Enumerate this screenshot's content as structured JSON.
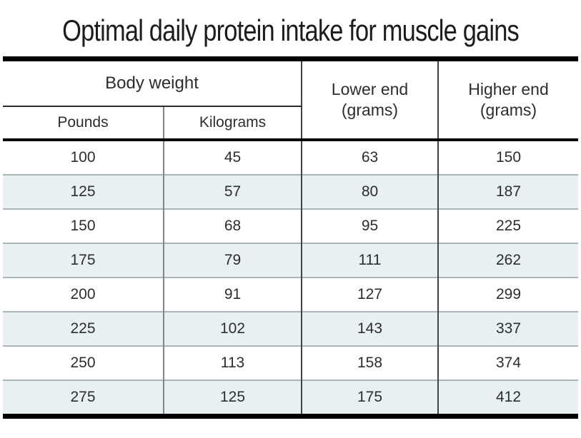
{
  "title": "Optimal daily protein intake for muscle gains",
  "table": {
    "header": {
      "body_weight": "Body weight",
      "pounds": "Pounds",
      "kilograms": "Kilograms",
      "lower_end": {
        "line1": "Lower end",
        "line2": "(grams)"
      },
      "higher_end": {
        "line1": "Higher end",
        "line2": "(grams)"
      }
    }
  },
  "chart_data": {
    "type": "table",
    "title": "Optimal daily protein intake for muscle gains",
    "column_groups": [
      {
        "label": "Body weight",
        "span": 2
      }
    ],
    "columns": [
      "Pounds",
      "Kilograms",
      "Lower end (grams)",
      "Higher end (grams)"
    ],
    "rows": [
      [
        100,
        45,
        63,
        150
      ],
      [
        125,
        57,
        80,
        187
      ],
      [
        150,
        68,
        95,
        225
      ],
      [
        175,
        79,
        111,
        262
      ],
      [
        200,
        91,
        127,
        299
      ],
      [
        225,
        102,
        143,
        337
      ],
      [
        250,
        113,
        158,
        374
      ],
      [
        275,
        125,
        175,
        412
      ]
    ],
    "row_shading": "alternate even rows shaded"
  },
  "colors": {
    "title_text": "#1c1c1c",
    "cell_text": "#2d2d2d",
    "row_alt_background": "#e9f0f2",
    "row_divider": "#a9b4b6",
    "major_column_divider": "#3f4547",
    "minor_column_divider": "#7d8689",
    "thick_bar": "#000000",
    "background": "#ffffff"
  }
}
